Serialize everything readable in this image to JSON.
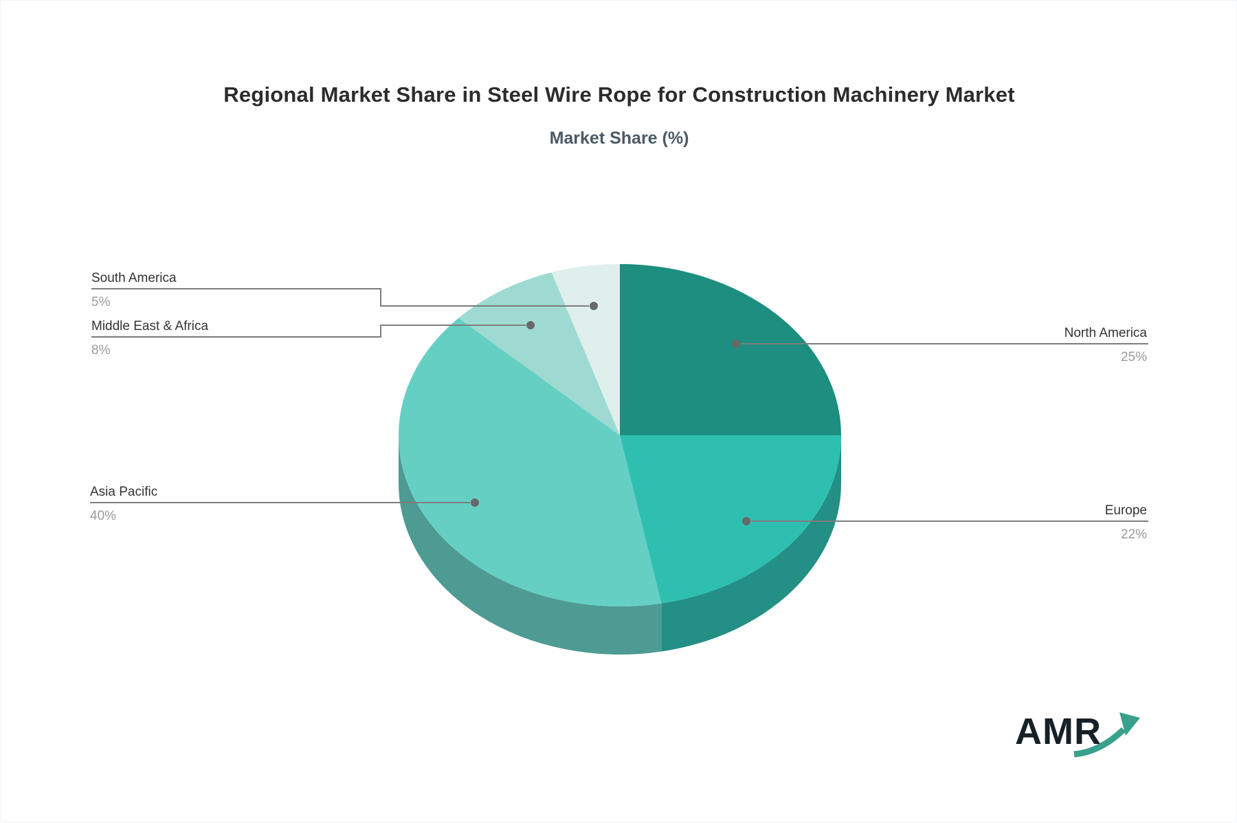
{
  "header": {
    "title": "Regional Market Share in Steel Wire Rope for Construction Machinery Market",
    "subtitle": "Market Share (%)"
  },
  "logo": {
    "text": "AMR"
  },
  "colors": {
    "leader_line": "#7d7d7d",
    "leader_dot": "#686868",
    "label_text": "#333333",
    "percent_text": "#9b9b9b",
    "logo_arrow": "#38a08c"
  },
  "chart_data": {
    "type": "pie",
    "title": "Regional Market Share in Steel Wire Rope for Construction Machinery Market",
    "subtitle": "Market Share (%)",
    "unit": "%",
    "effect": "3d",
    "start_angle_deg": 0,
    "direction": "clockwise",
    "legend_position": "none",
    "slices": [
      {
        "label": "North America",
        "value": 25,
        "display": "25%",
        "color": "#1d8e80"
      },
      {
        "label": "Europe",
        "value": 22,
        "display": "22%",
        "color": "#2fbfb1"
      },
      {
        "label": "Asia Pacific",
        "value": 40,
        "display": "40%",
        "color": "#66cfc4"
      },
      {
        "label": "Middle East & Africa",
        "value": 8,
        "display": "8%",
        "color": "#9edad2"
      },
      {
        "label": "South America",
        "value": 5,
        "display": "5%",
        "color": "#deefec"
      }
    ]
  }
}
